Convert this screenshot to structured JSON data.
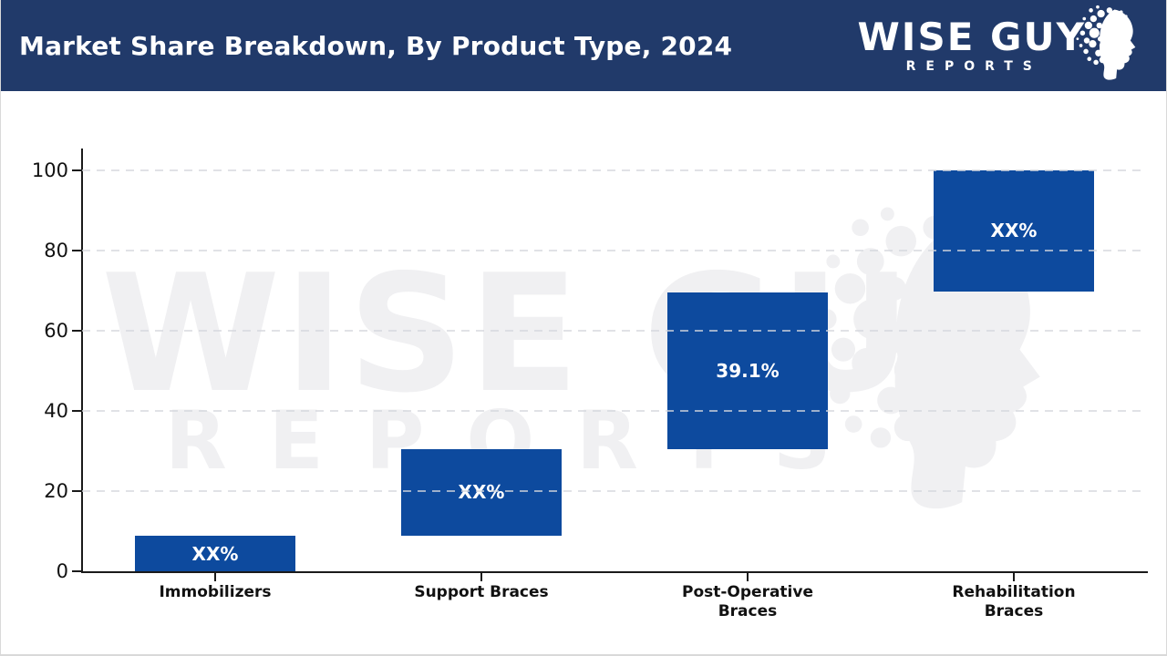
{
  "header": {
    "title": "Market Share Breakdown, By Product Type, 2024",
    "logo": {
      "line1": "WISE GUY",
      "line2": "REPORTS"
    }
  },
  "watermark": {
    "line1": "WISE GUY",
    "line2": "REPORTS"
  },
  "chart_data": {
    "type": "bar",
    "subtype": "floating-waterfall",
    "title": "Market Share Breakdown, By Product Type, 2024",
    "categories": [
      "Immobilizers",
      "Support Braces",
      "Post-Operative Braces",
      "Rehabilitation Braces"
    ],
    "bars": [
      {
        "category": "Immobilizers",
        "label": "XX%",
        "start": 0,
        "end": 8.8
      },
      {
        "category": "Support Braces",
        "label": "XX%",
        "start": 8.9,
        "end": 30.5
      },
      {
        "category": "Post-Operative Braces",
        "label": "39.1%",
        "start": 30.4,
        "end": 69.5
      },
      {
        "category": "Rehabilitation Braces",
        "label": "XX%",
        "start": 69.8,
        "end": 100
      }
    ],
    "xlabel": "",
    "ylabel": "",
    "ylim": [
      0,
      100
    ],
    "yticks": [
      0,
      20,
      40,
      60,
      80,
      100
    ],
    "grid": "horizontal-dashed",
    "legend": "none",
    "bar_color": "#0d4a9e"
  },
  "colors": {
    "header_bg": "#213a6a",
    "bar": "#0d4a9e",
    "gridline": "#dcdcdc",
    "axis": "#1a1a1a",
    "watermark": "#f0f0f2",
    "label_on_bar": "#ffffff"
  }
}
